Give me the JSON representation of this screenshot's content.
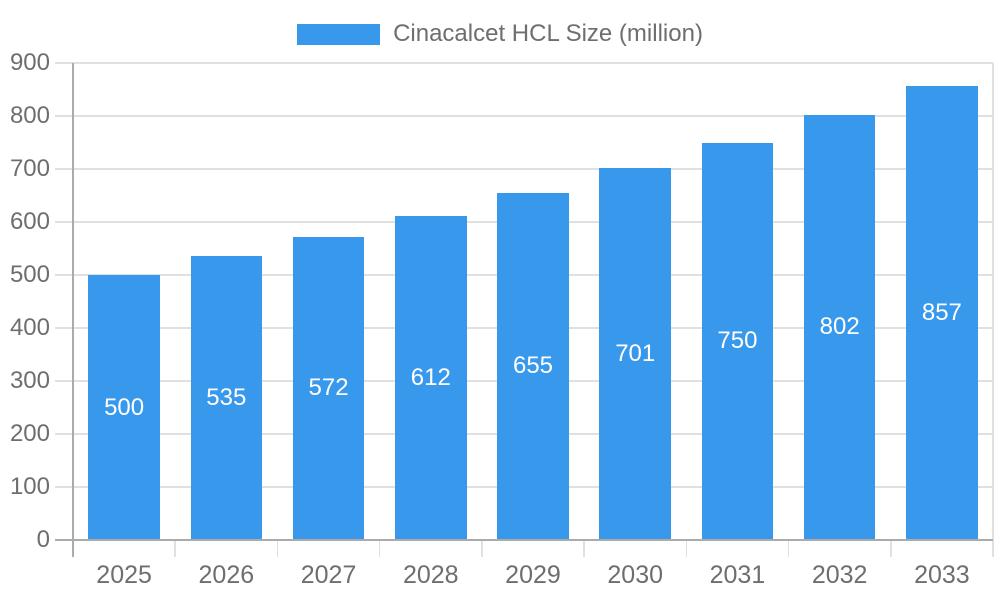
{
  "legend": {
    "series_label": "Cinacalcet HCL Size (million)"
  },
  "chart_data": {
    "type": "bar",
    "title": "Cinacalcet HCL Size (million)",
    "categories": [
      "2025",
      "2026",
      "2027",
      "2028",
      "2029",
      "2030",
      "2031",
      "2032",
      "2033"
    ],
    "values": [
      500,
      535,
      572,
      612,
      655,
      701,
      750,
      802,
      857
    ],
    "xlabel": "",
    "ylabel": "",
    "ylim": [
      0,
      900
    ],
    "ytick_interval": 100,
    "yticks": [
      0,
      100,
      200,
      300,
      400,
      500,
      600,
      700,
      800,
      900
    ],
    "grid": true,
    "legend_position": "top-center",
    "value_label_position": "inside-center",
    "colors": {
      "bar": "#3899EC",
      "value_label": "#ffffff",
      "axis_text": "#6e6e6e",
      "grid_line": "#e0e0e0",
      "axis_line": "#ababab",
      "background": "#ffffff"
    }
  }
}
